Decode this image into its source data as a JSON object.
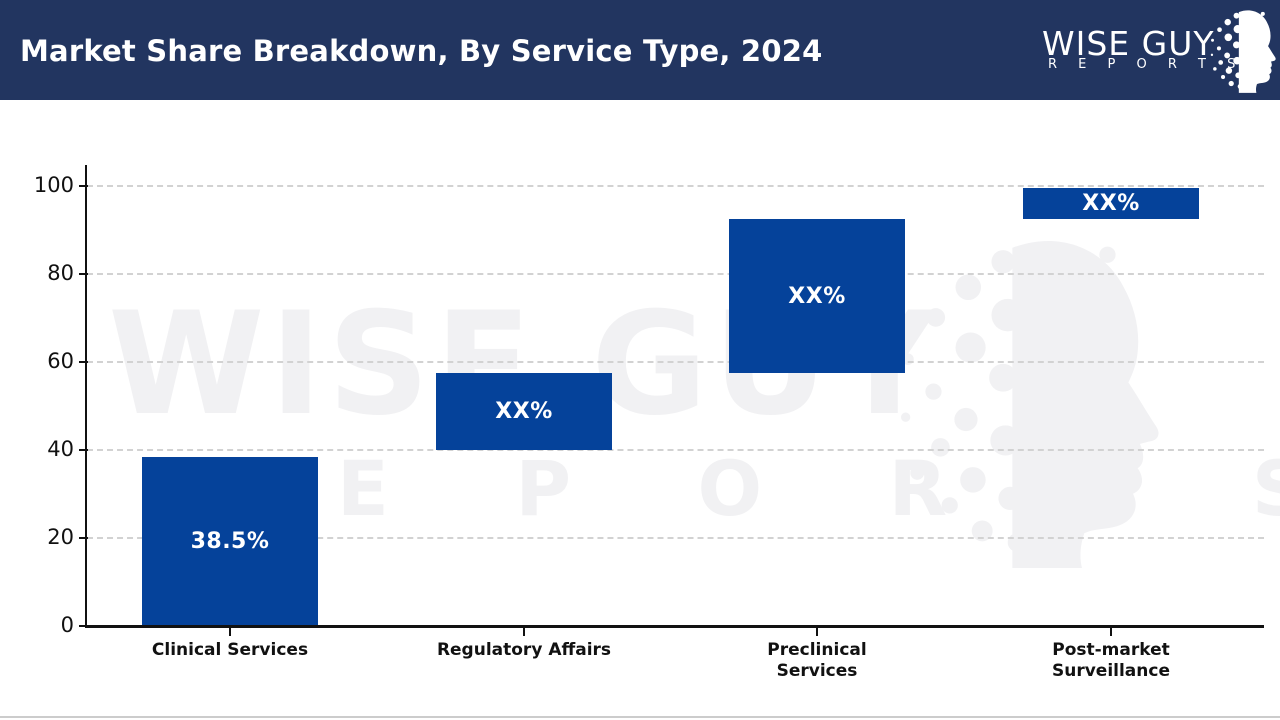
{
  "header": {
    "title": "Market Share Breakdown, By Service Type, 2024",
    "logo": {
      "line1": "WISE GUY",
      "line2": "R E P O R T S"
    }
  },
  "watermark": {
    "line1": "WISE GUY",
    "line2": "R E P O R T S"
  },
  "chart_data": {
    "type": "bar",
    "subtype": "waterfall",
    "title": "Market Share Breakdown, By Service Type, 2024",
    "categories": [
      "Clinical Services",
      "Regulatory Affairs",
      "Preclinical\nServices",
      "Post-market\nSurveillance"
    ],
    "bars": [
      {
        "category": "Clinical Services",
        "start": 0,
        "end": 38.5,
        "label": "38.5%"
      },
      {
        "category": "Regulatory Affairs",
        "start": 40,
        "end": 57.5,
        "label": "XX%"
      },
      {
        "category": "Preclinical Services",
        "start": 57.5,
        "end": 92.5,
        "label": "XX%"
      },
      {
        "category": "Post-market Surveillance",
        "start": 92.5,
        "end": 99.5,
        "label": "XX%"
      }
    ],
    "y_ticks": [
      0,
      20,
      40,
      60,
      80,
      100
    ],
    "ylim": [
      0,
      105
    ],
    "xlabel": "",
    "ylabel": "",
    "grid": "horizontal-dashed",
    "legend": "none"
  },
  "colors": {
    "header_bg": "#223560",
    "bar": "#05429a",
    "grid": "#d2d2d2",
    "axis": "#111111",
    "bar_label": "#ffffff",
    "watermark": "#f1f1f3"
  }
}
